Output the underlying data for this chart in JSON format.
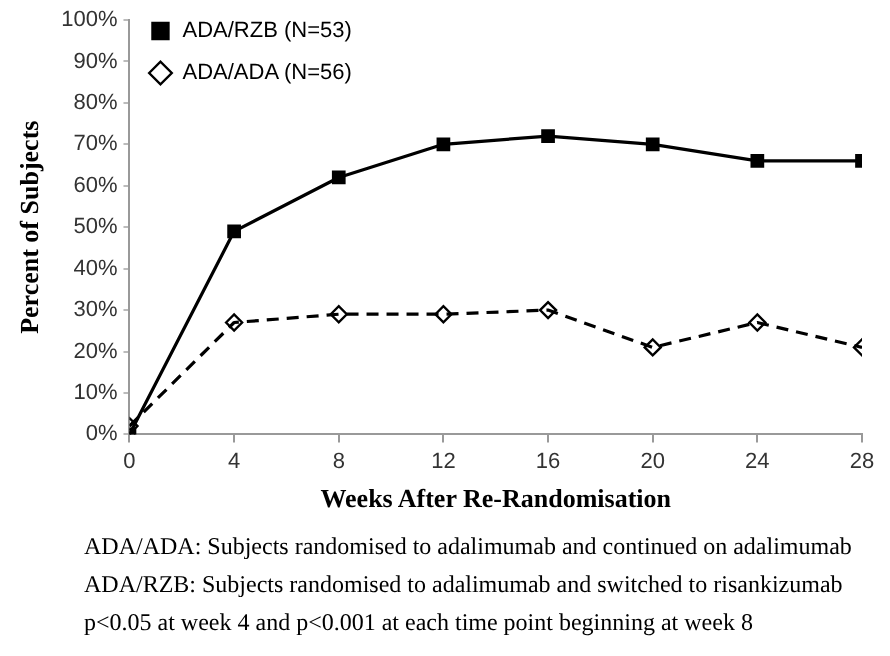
{
  "chart_data": {
    "type": "line",
    "xlabel": "Weeks After Re-Randomisation",
    "ylabel": "Percent of Subjects",
    "x": [
      0,
      4,
      8,
      12,
      16,
      20,
      24,
      28
    ],
    "series": [
      {
        "name": "ADA/RZB (N=53)",
        "color": "#000000",
        "values": [
          0,
          49,
          62,
          70,
          72,
          70,
          66,
          66
        ],
        "marker": "square",
        "line_style": "solid"
      },
      {
        "name": "ADA/ADA (N=56)",
        "color": "#000000",
        "values": [
          2,
          27,
          29,
          29,
          30,
          21,
          27,
          21
        ],
        "marker": "diamond",
        "line_style": "dashed"
      }
    ],
    "xlim": [
      0,
      28
    ],
    "xticks": [
      0,
      4,
      8,
      12,
      16,
      20,
      24,
      28
    ],
    "ylim": [
      0,
      100
    ],
    "yticks": [
      {
        "value": 0,
        "label": "0%"
      },
      {
        "value": 10,
        "label": "10%"
      },
      {
        "value": 20,
        "label": "20%"
      },
      {
        "value": 30,
        "label": "30%"
      },
      {
        "value": 40,
        "label": "40%"
      },
      {
        "value": 50,
        "label": "50%"
      },
      {
        "value": 60,
        "label": "60%"
      },
      {
        "value": 70,
        "label": "70%"
      },
      {
        "value": 80,
        "label": "80%"
      },
      {
        "value": 90,
        "label": "90%"
      },
      {
        "value": 100,
        "label": "100%"
      }
    ],
    "grid": false,
    "legend": "top left",
    "annotations": [
      "ADA/ADA: Subjects randomised to adalimumab and continued on adalimumab",
      "ADA/RZB: Subjects randomised to adalimumab and switched to risankizumab",
      "p<0.05 at week 4 and p<0.001 at each time point beginning at week 8"
    ]
  }
}
